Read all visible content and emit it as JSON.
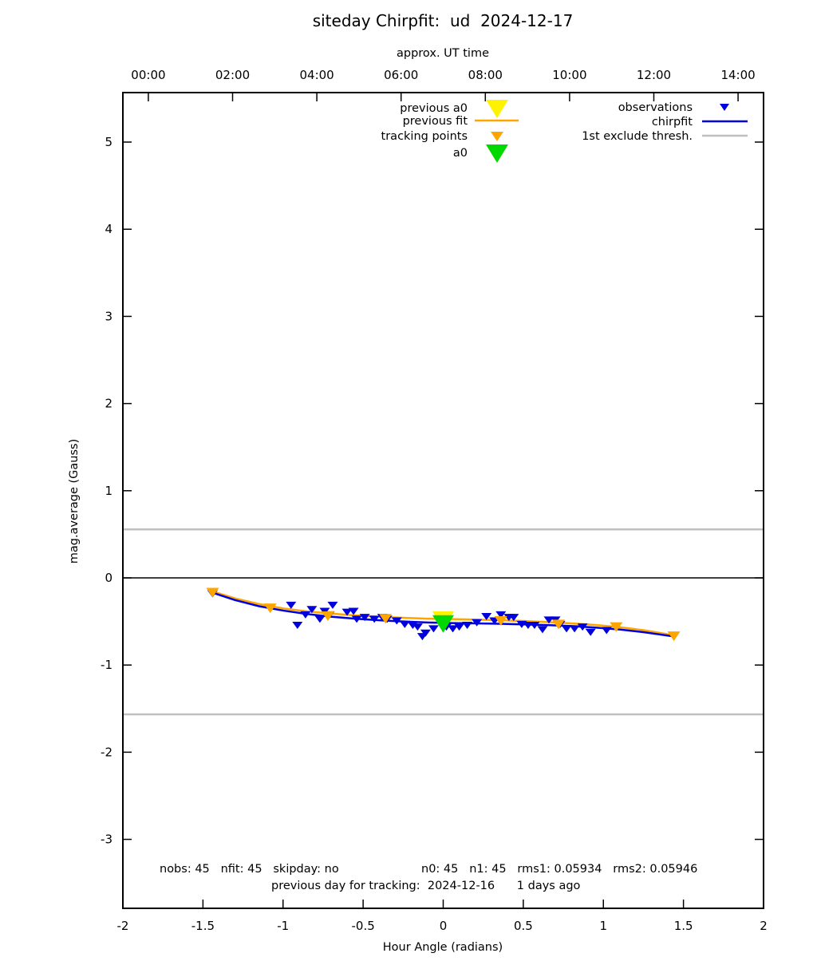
{
  "title": "siteday Chirpfit:  ud  2024-12-17",
  "colors": {
    "blue": "#0000dd",
    "orange": "#ffa500",
    "yellow": "#fff200",
    "green": "#00d900",
    "gray": "#c0c0c0",
    "axis": "#000000",
    "background": "#ffffff"
  },
  "legend": {
    "left": [
      {
        "label": "previous a0",
        "marker": "triangle-large",
        "color": "#fff200"
      },
      {
        "label": "previous fit",
        "marker": "line",
        "color": "#ffa500"
      },
      {
        "label": "tracking points",
        "marker": "triangle-small",
        "color": "#ffa500"
      },
      {
        "label": "a0",
        "marker": "triangle-large",
        "color": "#00d900"
      }
    ],
    "right": [
      {
        "label": "observations",
        "marker": "triangle-tiny",
        "color": "#0000dd"
      },
      {
        "label": "chirpfit",
        "marker": "line",
        "color": "#0000dd"
      },
      {
        "label": "1st exclude thresh.",
        "marker": "line",
        "color": "#c0c0c0"
      }
    ]
  },
  "annotations": {
    "line1_left": "nobs: 45   nfit: 45   skipday: no",
    "line1_right": "n0: 45   n1: 45   rms1: 0.05934   rms2: 0.05946",
    "line2": "previous day for tracking:  2024-12-16      1 days ago"
  },
  "chart_data": {
    "type": "scatter",
    "title": "siteday Chirpfit:  ud  2024-12-17",
    "xlabel": "Hour Angle (radians)",
    "ylabel": "mag.average (Gauss)",
    "x2label": "approx. UT time",
    "xlim": [
      -2,
      2
    ],
    "ylim": [
      -3.79,
      5.57
    ],
    "grid": false,
    "zero_line_y": 0,
    "axes": {
      "bottom_ticks": [
        {
          "label": "-2",
          "x": -2
        },
        {
          "label": "-1.5",
          "x": -1.5
        },
        {
          "label": "-1",
          "x": -1
        },
        {
          "label": "-0.5",
          "x": -0.5
        },
        {
          "label": "0",
          "x": 0
        },
        {
          "label": "0.5",
          "x": 0.5
        },
        {
          "label": "1",
          "x": 1
        },
        {
          "label": "1.5",
          "x": 1.5
        },
        {
          "label": "2",
          "x": 2
        }
      ],
      "left_ticks": [
        {
          "label": "-3",
          "y": -3
        },
        {
          "label": "-2",
          "y": -2
        },
        {
          "label": "-1",
          "y": -1
        },
        {
          "label": "0",
          "y": 0
        },
        {
          "label": "1",
          "y": 1
        },
        {
          "label": "2",
          "y": 2
        },
        {
          "label": "3",
          "y": 3
        },
        {
          "label": "4",
          "y": 4
        },
        {
          "label": "5",
          "y": 5
        }
      ],
      "top_ticks": [
        {
          "label": "00:00",
          "x": -1.841
        },
        {
          "label": "02:00",
          "x": -1.315
        },
        {
          "label": "04:00",
          "x": -0.789
        },
        {
          "label": "06:00",
          "x": -0.263
        },
        {
          "label": "08:00",
          "x": 0.263
        },
        {
          "label": "10:00",
          "x": 0.789
        },
        {
          "label": "12:00",
          "x": 1.315
        },
        {
          "label": "14:00",
          "x": 1.841
        }
      ]
    },
    "series": [
      {
        "name": "1st exclude thresh.",
        "type": "hline",
        "color": "#c0c0c0",
        "y_values": [
          0.556,
          -1.566
        ]
      },
      {
        "name": "previous fit",
        "type": "line",
        "color": "#ffa500",
        "points": [
          [
            -1.44,
            -0.155
          ],
          [
            -1.3,
            -0.235
          ],
          [
            -1.15,
            -0.3
          ],
          [
            -1.0,
            -0.35
          ],
          [
            -0.85,
            -0.385
          ],
          [
            -0.7,
            -0.41
          ],
          [
            -0.55,
            -0.43
          ],
          [
            -0.4,
            -0.447
          ],
          [
            -0.25,
            -0.458
          ],
          [
            -0.1,
            -0.468
          ],
          [
            0.05,
            -0.473
          ],
          [
            0.2,
            -0.478
          ],
          [
            0.35,
            -0.486
          ],
          [
            0.5,
            -0.495
          ],
          [
            0.65,
            -0.507
          ],
          [
            0.8,
            -0.522
          ],
          [
            0.95,
            -0.54
          ],
          [
            1.1,
            -0.565
          ],
          [
            1.25,
            -0.6
          ],
          [
            1.44,
            -0.658
          ]
        ]
      },
      {
        "name": "chirpfit",
        "type": "line",
        "color": "#0000dd",
        "points": [
          [
            -1.44,
            -0.17
          ],
          [
            -1.3,
            -0.255
          ],
          [
            -1.15,
            -0.325
          ],
          [
            -1.0,
            -0.375
          ],
          [
            -0.85,
            -0.415
          ],
          [
            -0.7,
            -0.445
          ],
          [
            -0.55,
            -0.468
          ],
          [
            -0.4,
            -0.487
          ],
          [
            -0.25,
            -0.5
          ],
          [
            -0.1,
            -0.512
          ],
          [
            0.05,
            -0.518
          ],
          [
            0.2,
            -0.522
          ],
          [
            0.35,
            -0.527
          ],
          [
            0.5,
            -0.533
          ],
          [
            0.65,
            -0.542
          ],
          [
            0.8,
            -0.553
          ],
          [
            0.95,
            -0.57
          ],
          [
            1.1,
            -0.592
          ],
          [
            1.25,
            -0.623
          ],
          [
            1.44,
            -0.672
          ]
        ]
      },
      {
        "name": "observations",
        "type": "points",
        "marker": "obs",
        "color": "#0000dd",
        "points": [
          [
            -1.44,
            -0.18
          ],
          [
            -0.95,
            -0.31
          ],
          [
            -0.91,
            -0.54
          ],
          [
            -0.86,
            -0.42
          ],
          [
            -0.82,
            -0.36
          ],
          [
            -0.77,
            -0.47
          ],
          [
            -0.74,
            -0.38
          ],
          [
            -0.71,
            -0.42
          ],
          [
            -0.69,
            -0.31
          ],
          [
            -0.6,
            -0.39
          ],
          [
            -0.56,
            -0.38
          ],
          [
            -0.54,
            -0.47
          ],
          [
            -0.49,
            -0.45
          ],
          [
            -0.43,
            -0.47
          ],
          [
            -0.38,
            -0.45
          ],
          [
            -0.35,
            -0.47
          ],
          [
            -0.29,
            -0.49
          ],
          [
            -0.24,
            -0.53
          ],
          [
            -0.19,
            -0.54
          ],
          [
            -0.16,
            -0.56
          ],
          [
            -0.13,
            -0.67
          ],
          [
            -0.11,
            -0.63
          ],
          [
            -0.06,
            -0.58
          ],
          [
            0.02,
            -0.56
          ],
          [
            0.06,
            -0.58
          ],
          [
            0.1,
            -0.56
          ],
          [
            0.15,
            -0.54
          ],
          [
            0.21,
            -0.51
          ],
          [
            0.27,
            -0.44
          ],
          [
            0.32,
            -0.49
          ],
          [
            0.36,
            -0.42
          ],
          [
            0.41,
            -0.45
          ],
          [
            0.44,
            -0.45
          ],
          [
            0.49,
            -0.53
          ],
          [
            0.53,
            -0.54
          ],
          [
            0.57,
            -0.54
          ],
          [
            0.62,
            -0.59
          ],
          [
            0.66,
            -0.48
          ],
          [
            0.7,
            -0.48
          ],
          [
            0.73,
            -0.53
          ],
          [
            0.77,
            -0.58
          ],
          [
            0.82,
            -0.58
          ],
          [
            0.87,
            -0.56
          ],
          [
            0.92,
            -0.62
          ],
          [
            1.02,
            -0.6
          ]
        ]
      },
      {
        "name": "tracking points",
        "type": "points",
        "marker": "track",
        "color": "#ffa500",
        "points": [
          [
            -1.44,
            -0.16
          ],
          [
            -1.08,
            -0.34
          ],
          [
            -0.72,
            -0.43
          ],
          [
            -0.36,
            -0.46
          ],
          [
            0.0,
            -0.475
          ],
          [
            0.36,
            -0.485
          ],
          [
            0.72,
            -0.525
          ],
          [
            1.08,
            -0.555
          ],
          [
            1.44,
            -0.66
          ]
        ]
      },
      {
        "name": "previous a0",
        "type": "points",
        "marker": "big",
        "color": "#fff200",
        "points": [
          [
            0.0,
            -0.475
          ]
        ]
      },
      {
        "name": "a0",
        "type": "points",
        "marker": "big",
        "color": "#00d900",
        "points": [
          [
            0.0,
            -0.52
          ]
        ]
      }
    ],
    "stats": {
      "nobs": 45,
      "nfit": 45,
      "skipday": "no",
      "n0": 45,
      "n1": 45,
      "rms1": 0.05934,
      "rms2": 0.05946,
      "previous_day_for_tracking": "2024-12-16",
      "days_ago": "1 days ago"
    }
  }
}
